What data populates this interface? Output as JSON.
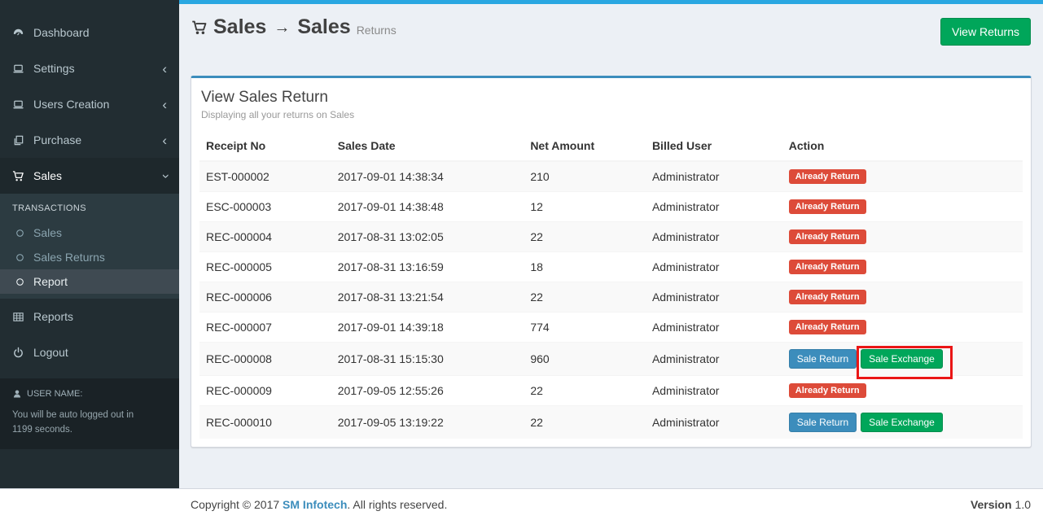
{
  "colors": {
    "sidebar_bg": "#222d32",
    "sidebar_active_bg": "#1e282c",
    "topbar_blue": "#29a7e1",
    "accent_blue": "#3c8dbc",
    "success_green": "#00a65a",
    "danger_red": "#dd4b39",
    "annotation_red": "#ea1616",
    "body_bg": "#ecf0f5"
  },
  "sidebar": {
    "items": [
      {
        "label": "Dashboard",
        "icon": "dashboard-icon"
      },
      {
        "label": "Settings",
        "icon": "laptop-icon",
        "chevron": "left"
      },
      {
        "label": "Users Creation",
        "icon": "laptop-icon",
        "chevron": "left"
      },
      {
        "label": "Purchase",
        "icon": "copy-icon",
        "chevron": "left"
      },
      {
        "label": "Sales",
        "icon": "cart-icon",
        "chevron": "down",
        "active": true
      }
    ],
    "section_header": "TRANSACTIONS",
    "sub_items": [
      {
        "label": "Sales"
      },
      {
        "label": "Sales Returns"
      },
      {
        "label": "Report",
        "active": true
      }
    ],
    "bottom_items": [
      {
        "label": "Reports",
        "icon": "table-icon"
      },
      {
        "label": "Logout",
        "icon": "power-icon"
      }
    ],
    "user_label": "USER NAME:",
    "logout_notice": "You will be auto logged out in 1199 seconds."
  },
  "header": {
    "breadcrumb_root": "Sales",
    "page_title": "Sales",
    "page_subtitle": "Returns",
    "view_returns_button": "View Returns"
  },
  "panel": {
    "title": "View Sales Return",
    "subtitle": "Displaying all your returns on Sales"
  },
  "table": {
    "columns": [
      "Receipt No",
      "Sales Date",
      "Net Amount",
      "Billed User",
      "Action"
    ],
    "rows": [
      {
        "receipt_no": "EST-000002",
        "sales_date": "2017-09-01 14:38:34",
        "net_amount": "210",
        "billed_user": "Administrator",
        "actions": [
          {
            "label": "Already Return",
            "kind": "badge",
            "style": "danger"
          }
        ]
      },
      {
        "receipt_no": "ESC-000003",
        "sales_date": "2017-09-01 14:38:48",
        "net_amount": "12",
        "billed_user": "Administrator",
        "actions": [
          {
            "label": "Already Return",
            "kind": "badge",
            "style": "danger"
          }
        ]
      },
      {
        "receipt_no": "REC-000004",
        "sales_date": "2017-08-31 13:02:05",
        "net_amount": "22",
        "billed_user": "Administrator",
        "actions": [
          {
            "label": "Already Return",
            "kind": "badge",
            "style": "danger"
          }
        ]
      },
      {
        "receipt_no": "REC-000005",
        "sales_date": "2017-08-31 13:16:59",
        "net_amount": "18",
        "billed_user": "Administrator",
        "actions": [
          {
            "label": "Already Return",
            "kind": "badge",
            "style": "danger"
          }
        ]
      },
      {
        "receipt_no": "REC-000006",
        "sales_date": "2017-08-31 13:21:54",
        "net_amount": "22",
        "billed_user": "Administrator",
        "actions": [
          {
            "label": "Already Return",
            "kind": "badge",
            "style": "danger"
          }
        ]
      },
      {
        "receipt_no": "REC-000007",
        "sales_date": "2017-09-01 14:39:18",
        "net_amount": "774",
        "billed_user": "Administrator",
        "actions": [
          {
            "label": "Already Return",
            "kind": "badge",
            "style": "danger"
          }
        ]
      },
      {
        "receipt_no": "REC-000008",
        "sales_date": "2017-08-31 15:15:30",
        "net_amount": "960",
        "billed_user": "Administrator",
        "actions": [
          {
            "label": "Sale Return",
            "kind": "button",
            "style": "primary"
          },
          {
            "label": "Sale Exchange",
            "kind": "button",
            "style": "success",
            "highlighted": true
          }
        ]
      },
      {
        "receipt_no": "REC-000009",
        "sales_date": "2017-09-05 12:55:26",
        "net_amount": "22",
        "billed_user": "Administrator",
        "actions": [
          {
            "label": "Already Return",
            "kind": "badge",
            "style": "danger"
          }
        ]
      },
      {
        "receipt_no": "REC-000010",
        "sales_date": "2017-09-05 13:19:22",
        "net_amount": "22",
        "billed_user": "Administrator",
        "actions": [
          {
            "label": "Sale Return",
            "kind": "button",
            "style": "primary"
          },
          {
            "label": "Sale Exchange",
            "kind": "button",
            "style": "success"
          }
        ]
      }
    ]
  },
  "footer": {
    "copyright_prefix": "Copyright © 2017 ",
    "brand": "SM Infotech",
    "copyright_suffix": ". All rights reserved.",
    "version_label": "Version",
    "version_value": "1.0"
  }
}
